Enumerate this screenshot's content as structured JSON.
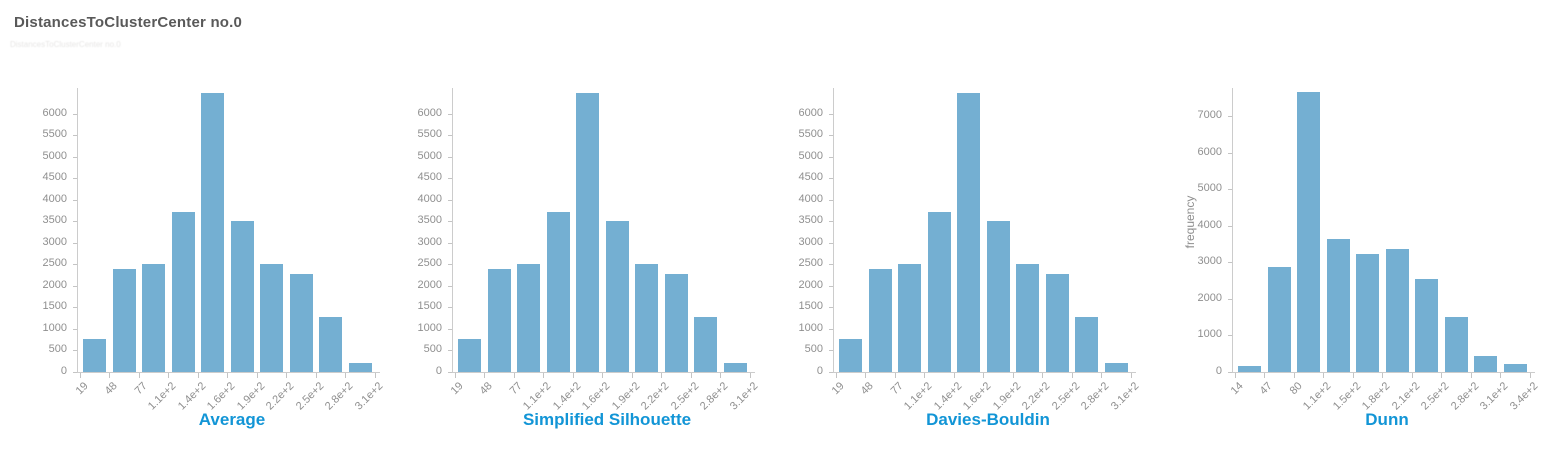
{
  "header": {
    "title": "DistancesToClusterCenter no.0",
    "ghost_text": "DistancesToClusterCenter no.0"
  },
  "accent_colors": {
    "bar_fill": "#74afd2",
    "caption_blue": "#1295d6",
    "title_gray": "#595959",
    "tick_gray": "#8f8f8f",
    "axis_gray": "#cccccc"
  },
  "chart_data": [
    {
      "type": "bar",
      "caption": "Average",
      "ylabel": "",
      "bin_edges": [
        "19",
        "48",
        "77",
        "1.1e+2",
        "1.4e+2",
        "1.6e+2",
        "1.9e+2",
        "2.2e+2",
        "2.5e+2",
        "2.8e+2",
        "3.1e+2"
      ],
      "values": [
        760,
        2400,
        2500,
        3720,
        6480,
        3500,
        2500,
        2280,
        1270,
        200
      ],
      "y_ticks": [
        0,
        500,
        1000,
        1500,
        2000,
        2500,
        3000,
        3500,
        4000,
        4500,
        5000,
        5500,
        6000
      ],
      "ylim": [
        0,
        6600
      ],
      "grid": false,
      "legend": "none"
    },
    {
      "type": "bar",
      "caption": "Simplified Silhouette",
      "ylabel": "",
      "bin_edges": [
        "19",
        "48",
        "77",
        "1.1e+2",
        "1.4e+2",
        "1.6e+2",
        "1.9e+2",
        "2.2e+2",
        "2.5e+2",
        "2.8e+2",
        "3.1e+2"
      ],
      "values": [
        760,
        2400,
        2500,
        3720,
        6480,
        3500,
        2500,
        2280,
        1270,
        200
      ],
      "y_ticks": [
        0,
        500,
        1000,
        1500,
        2000,
        2500,
        3000,
        3500,
        4000,
        4500,
        5000,
        5500,
        6000
      ],
      "ylim": [
        0,
        6600
      ],
      "grid": false,
      "legend": "none"
    },
    {
      "type": "bar",
      "caption": "Davies-Bouldin",
      "ylabel": "",
      "bin_edges": [
        "19",
        "48",
        "77",
        "1.1e+2",
        "1.4e+2",
        "1.6e+2",
        "1.9e+2",
        "2.2e+2",
        "2.5e+2",
        "2.8e+2",
        "3.1e+2"
      ],
      "values": [
        760,
        2400,
        2500,
        3720,
        6480,
        3500,
        2500,
        2280,
        1270,
        200
      ],
      "y_ticks": [
        0,
        500,
        1000,
        1500,
        2000,
        2500,
        3000,
        3500,
        4000,
        4500,
        5000,
        5500,
        6000
      ],
      "ylim": [
        0,
        6600
      ],
      "grid": false,
      "legend": "none"
    },
    {
      "type": "bar",
      "caption": "Dunn",
      "ylabel": "frequency",
      "bin_edges": [
        "14",
        "47",
        "80",
        "1.1e+2",
        "1.5e+2",
        "1.8e+2",
        "2.1e+2",
        "2.5e+2",
        "2.8e+2",
        "3.1e+2",
        "3.4e+2"
      ],
      "values": [
        160,
        2870,
        7650,
        3640,
        3220,
        3360,
        2550,
        1500,
        430,
        220
      ],
      "y_ticks": [
        0,
        1000,
        2000,
        3000,
        4000,
        5000,
        6000,
        7000
      ],
      "ylim": [
        0,
        7770
      ],
      "grid": false,
      "legend": "none"
    }
  ]
}
